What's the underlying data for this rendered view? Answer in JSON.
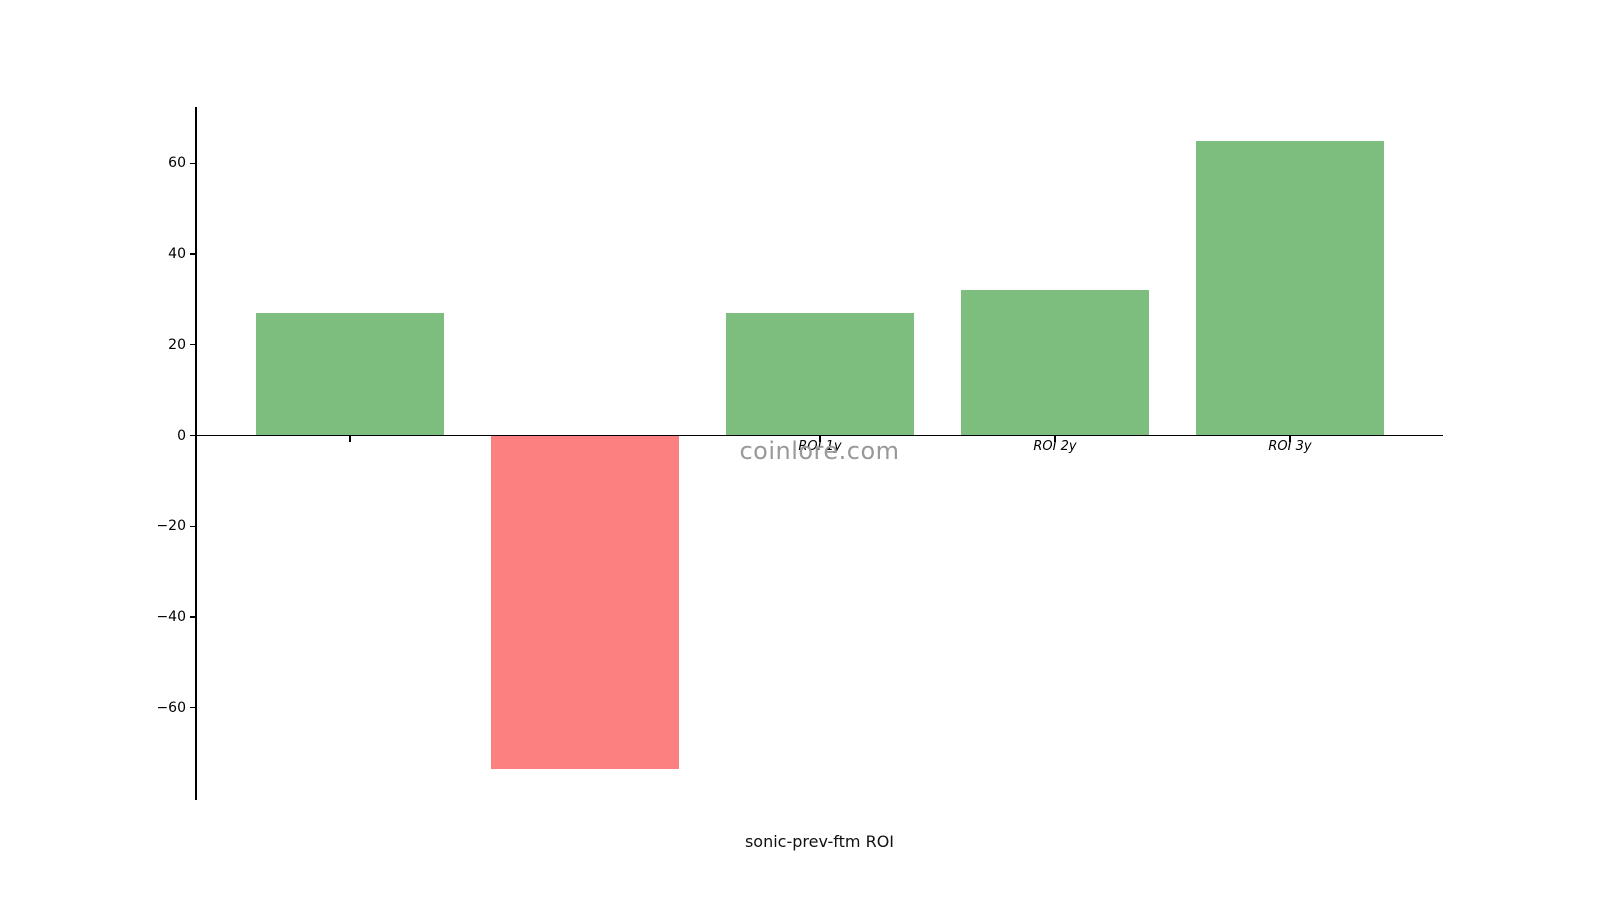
{
  "chart_data": {
    "type": "bar",
    "title": "sonic-prev-ftm ROI",
    "watermark": "coinlore.com",
    "categories": [
      "",
      "",
      "ROI 1y",
      "ROI 2y",
      "ROI 3y"
    ],
    "values": [
      27,
      -73.5,
      27,
      32,
      65
    ],
    "xlabel": "",
    "ylabel": "",
    "y_ticks": [
      60,
      40,
      20,
      0,
      -20,
      -40,
      -60
    ],
    "ylim": [
      -80.4,
      72.4
    ],
    "grid": false,
    "legend": false,
    "colors": {
      "positive_bar": "#7dbd7d",
      "negative_bar": "#fd8080",
      "axis": "#000000",
      "tick_label": "#000000",
      "watermark": "#999999"
    }
  }
}
